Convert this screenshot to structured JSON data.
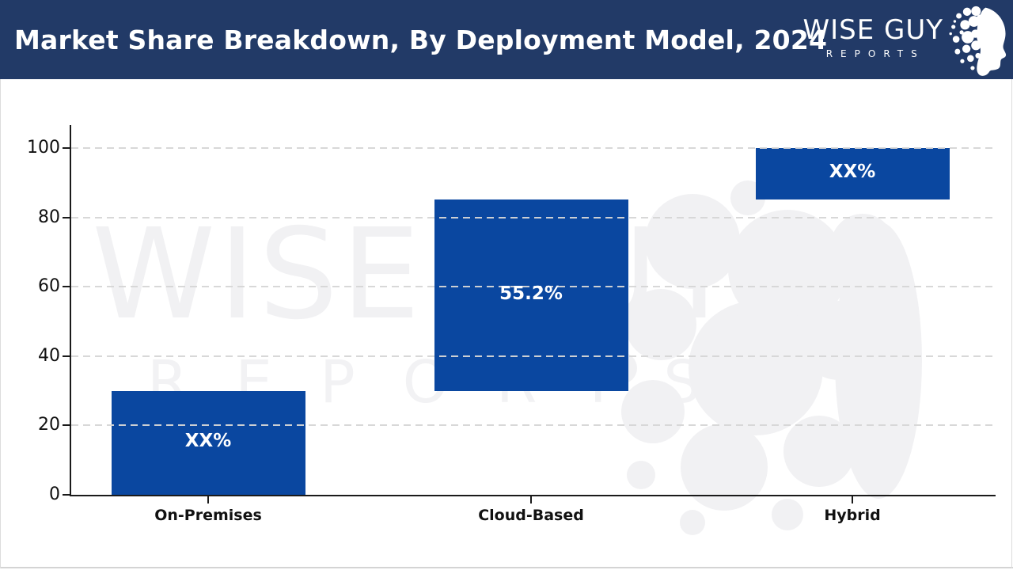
{
  "header": {
    "title": "Market Share Breakdown, By Deployment Model, 2024",
    "bg_color": "#223a67",
    "logo": {
      "wordmark": "WISE GUY",
      "subtext": "REPORTS"
    }
  },
  "watermark": {
    "line1": "WISE GUY",
    "line2": "REPORTS",
    "color": "#f1f1f3"
  },
  "chart_data": {
    "type": "bar",
    "subtype": "floating-segment column chart (stacked breakdown, each bar spans its cumulative range)",
    "title": "Market Share Breakdown, By Deployment Model, 2024",
    "categories": [
      "On-Premises",
      "Cloud-Based",
      "Hybrid"
    ],
    "bars": [
      {
        "category": "On-Premises",
        "from": 0,
        "to": 30,
        "label": "XX%"
      },
      {
        "category": "Cloud-Based",
        "from": 30,
        "to": 85.2,
        "label": "55.2%"
      },
      {
        "category": "Hybrid",
        "from": 85.2,
        "to": 100,
        "label": "XX%"
      }
    ],
    "xlabel": "",
    "ylabel": "",
    "yticks": [
      0,
      20,
      40,
      60,
      80,
      100
    ],
    "ylim": [
      0,
      106
    ],
    "grid": "horizontal dashed gridlines, drawn on top of bars",
    "legend": "none",
    "bar_color": "#0a47a0",
    "bar_label_color": "#ffffff",
    "axis_color": "#1a1a1a",
    "gridline_color": "#d6d6d6",
    "tick_label_color": "#111111"
  }
}
